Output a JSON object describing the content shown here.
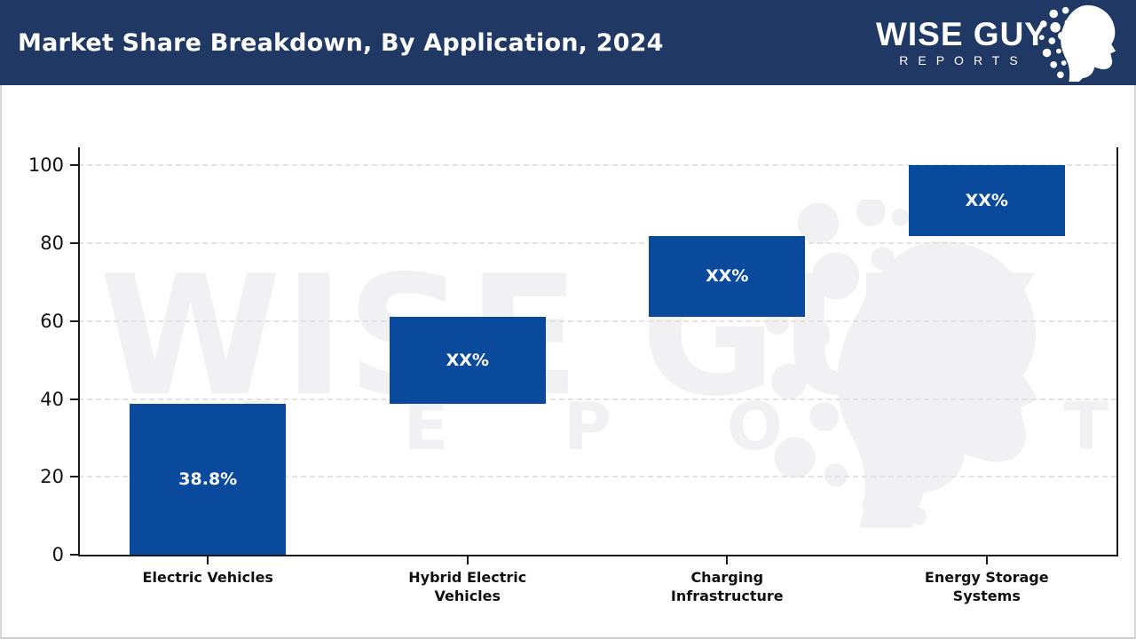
{
  "header": {
    "title": "Market Share Breakdown, By Application, 2024",
    "logo": {
      "line1": "WISE GUY",
      "line2": "REPORTS"
    }
  },
  "watermark": {
    "line1": "WISE GUY",
    "line2": "REPORTS"
  },
  "colors": {
    "header_bg": "#1f3864",
    "bar": "#0a4a9c",
    "grid": "#e2e2e2",
    "axis": "#1a1a1a",
    "bar_label": "#ffffff",
    "watermark": "#f1f1f4"
  },
  "chart_data": {
    "type": "bar",
    "variant": "waterfall",
    "title": "Market Share Breakdown, By Application, 2024",
    "xlabel": "",
    "ylabel": "",
    "ylim": [
      0,
      105
    ],
    "yticks": [
      0,
      20,
      40,
      60,
      80,
      100
    ],
    "grid": "horizontal-dashed",
    "legend": "none",
    "categories": [
      "Electric Vehicles",
      "Hybrid Electric Vehicles",
      "Charging Infrastructure",
      "Energy Storage Systems"
    ],
    "segments": [
      {
        "label_lines": [
          "Electric Vehicles"
        ],
        "start": 0,
        "end": 38.8,
        "value": 38.8,
        "value_label": "38.8%"
      },
      {
        "label_lines": [
          "Hybrid Electric",
          "Vehicles"
        ],
        "start": 38.8,
        "end": 61.2,
        "value": 22.4,
        "value_label": "XX%"
      },
      {
        "label_lines": [
          "Charging",
          "Infrastructure"
        ],
        "start": 61.2,
        "end": 81.8,
        "value": 20.6,
        "value_label": "XX%"
      },
      {
        "label_lines": [
          "Energy Storage",
          "Systems"
        ],
        "start": 81.8,
        "end": 100,
        "value": 18.2,
        "value_label": "XX%"
      }
    ]
  }
}
